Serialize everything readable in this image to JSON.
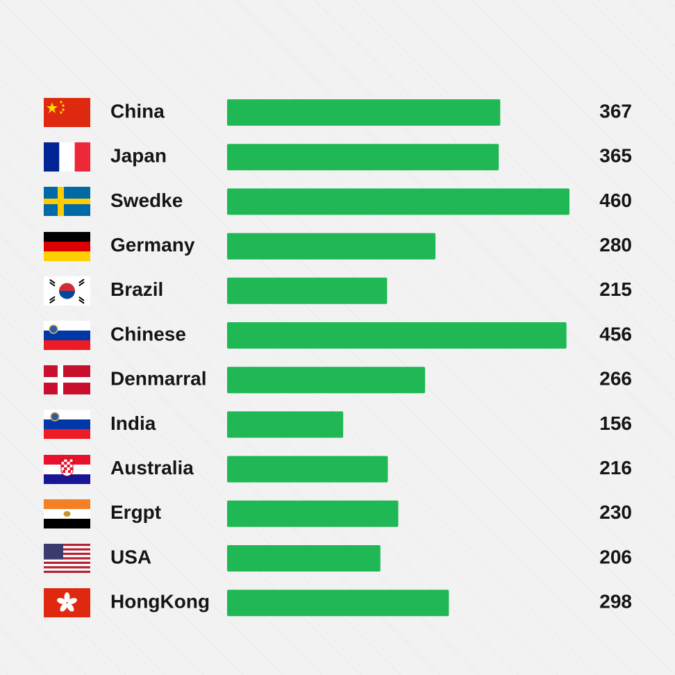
{
  "chart_data": {
    "type": "bar",
    "orientation": "horizontal",
    "categories": [
      "China",
      "Japan",
      "Swedke",
      "Germany",
      "Brazil",
      "Chinese",
      "Denmarral",
      "India",
      "Australia",
      "Ergpt",
      "USA",
      "HongKong"
    ],
    "values": [
      367,
      365,
      460,
      280,
      215,
      456,
      266,
      156,
      216,
      230,
      206,
      298
    ],
    "color": "#1fb855"
  }
}
